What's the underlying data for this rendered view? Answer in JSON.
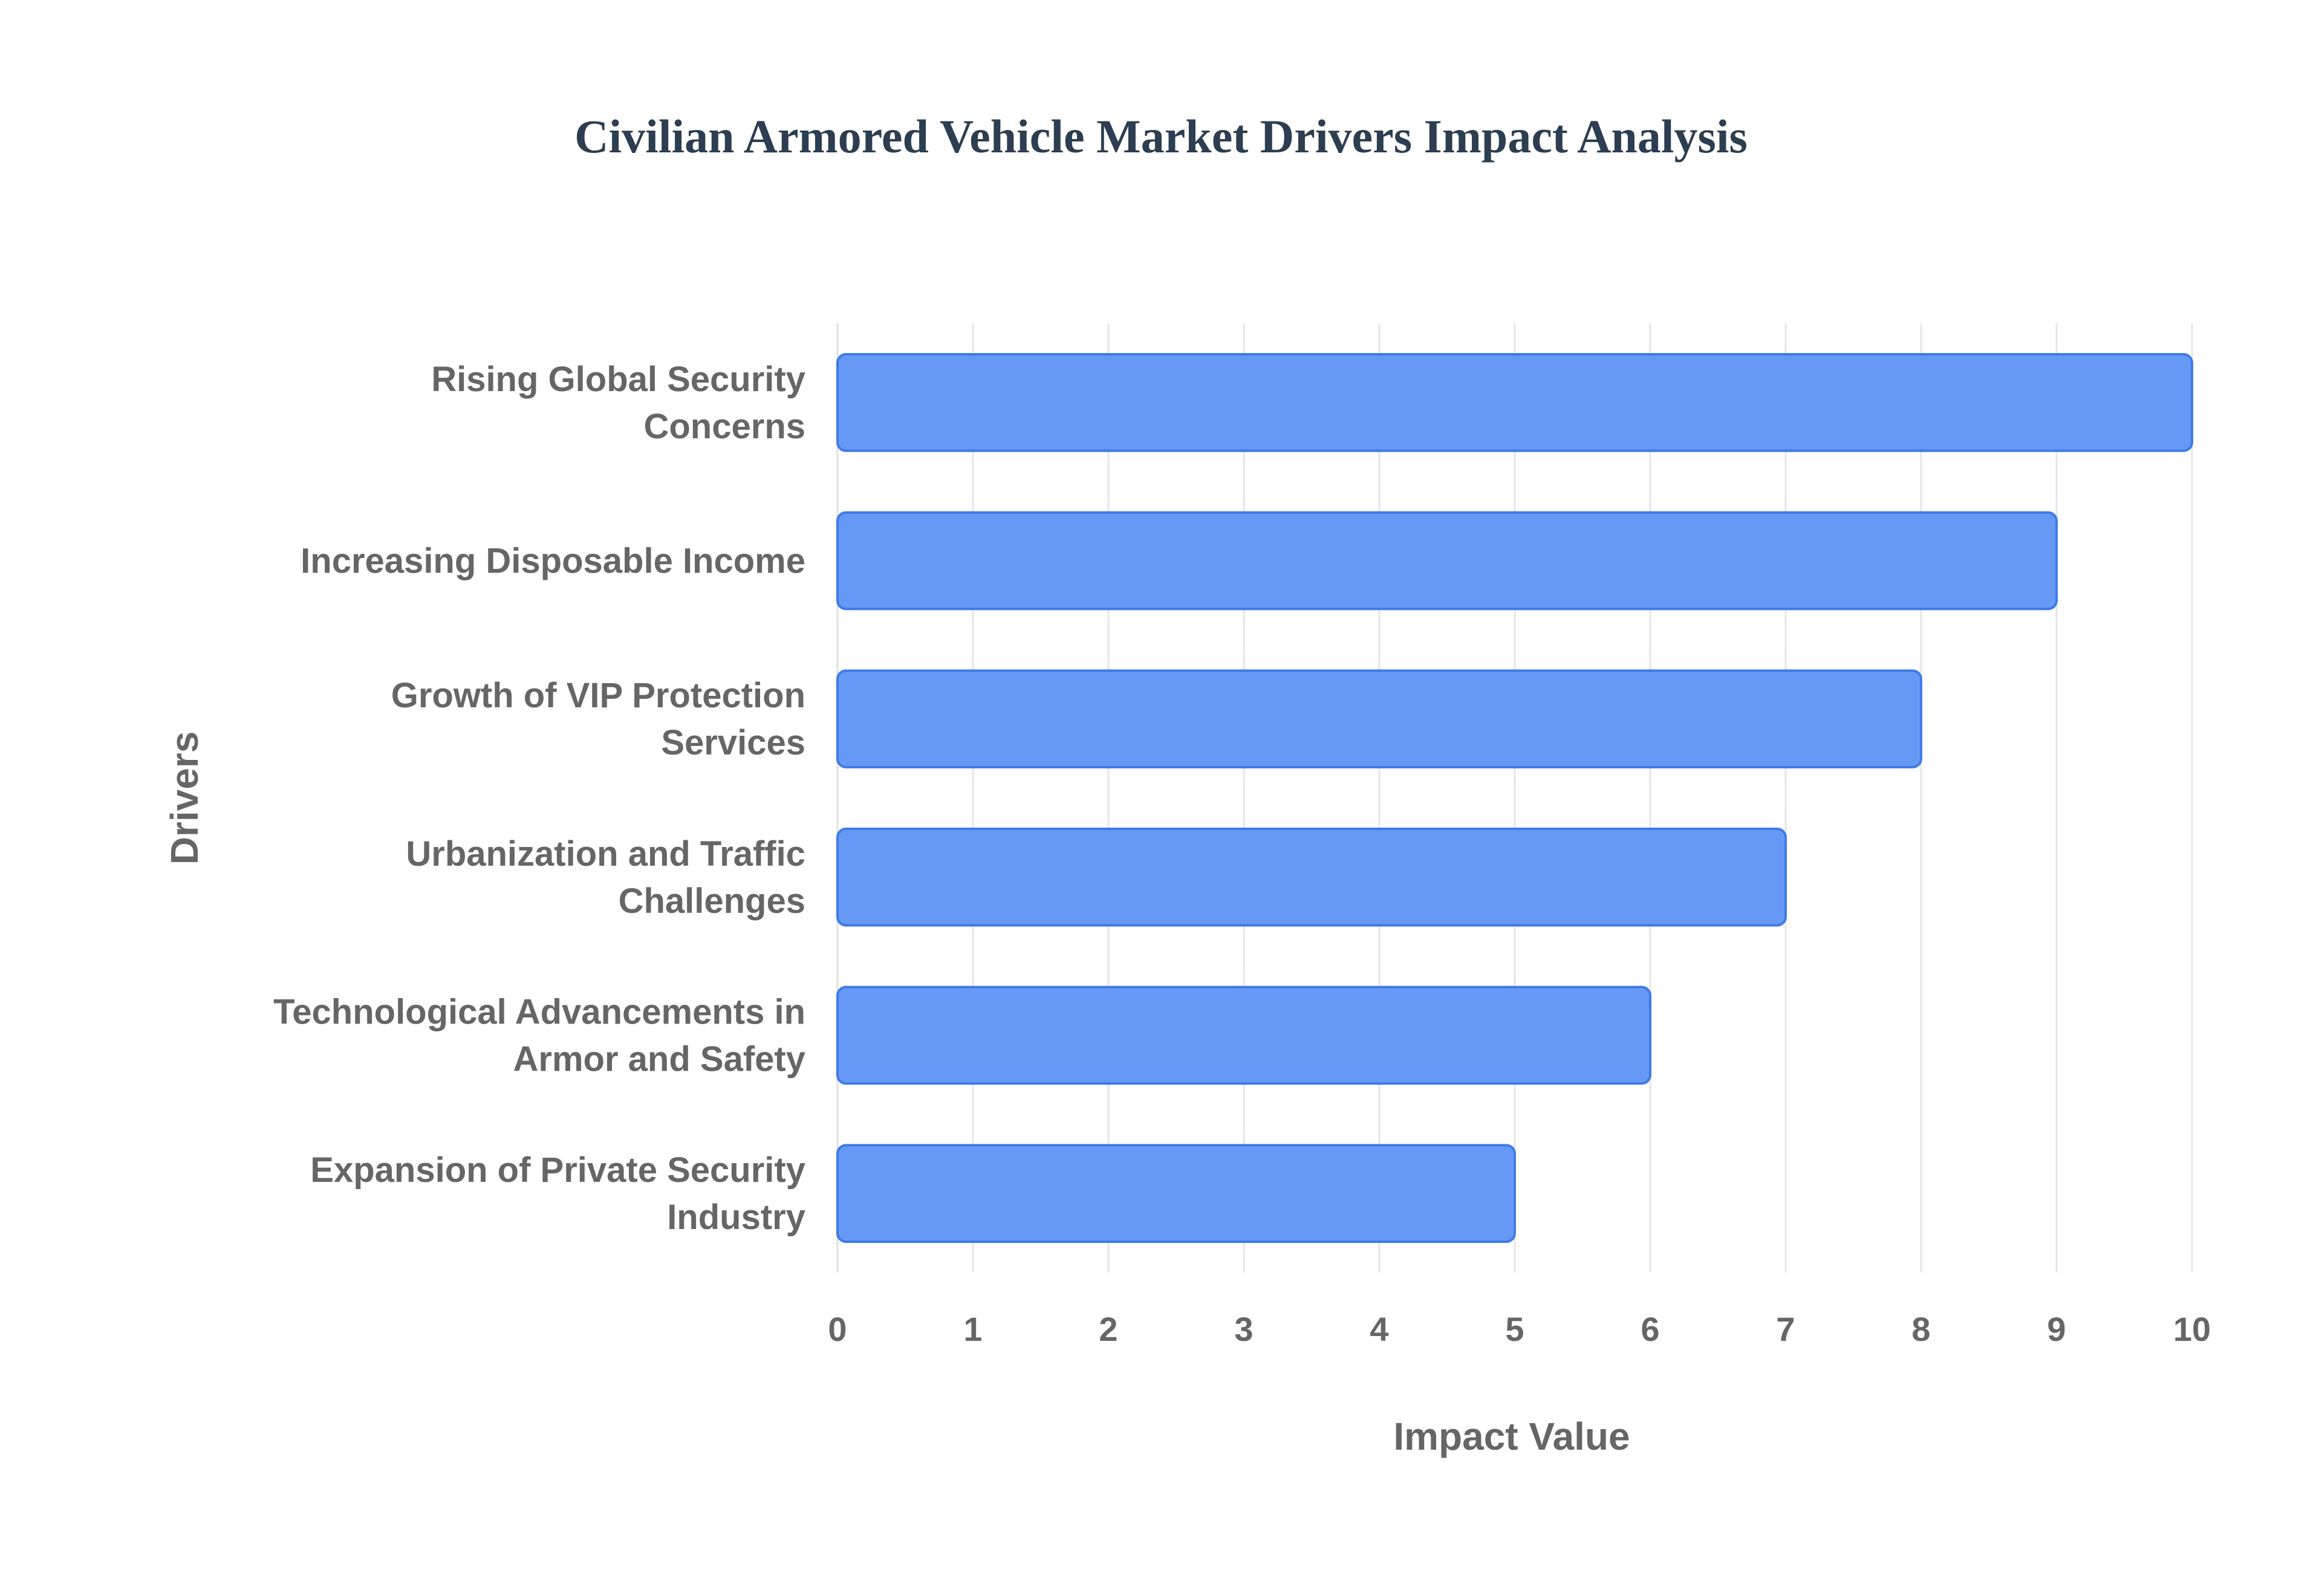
{
  "chart_data": {
    "type": "bar",
    "orientation": "horizontal",
    "title": "Civilian Armored Vehicle Market Drivers Impact Analysis",
    "xlabel": "Impact Value",
    "ylabel": "Drivers",
    "xlim": [
      0,
      10
    ],
    "x_ticks": [
      "0",
      "1",
      "2",
      "3",
      "4",
      "5",
      "6",
      "7",
      "8",
      "9",
      "10"
    ],
    "grid": true,
    "categories": [
      [
        "Rising Global Security",
        "Concerns"
      ],
      [
        "Increasing Disposable Income"
      ],
      [
        "Growth of VIP Protection",
        "Services"
      ],
      [
        "Urbanization and Traffic",
        "Challenges"
      ],
      [
        "Technological Advancements in",
        "Armor and Safety"
      ],
      [
        "Expansion of Private Security",
        "Industry"
      ]
    ],
    "values": [
      10,
      9,
      8,
      7,
      6,
      5
    ],
    "colors": {
      "bar_fill": "#6699f5",
      "bar_stroke": "#3f7ae8",
      "title": "#2c3e50",
      "text": "#666666",
      "grid": "#e6e6e6"
    }
  }
}
